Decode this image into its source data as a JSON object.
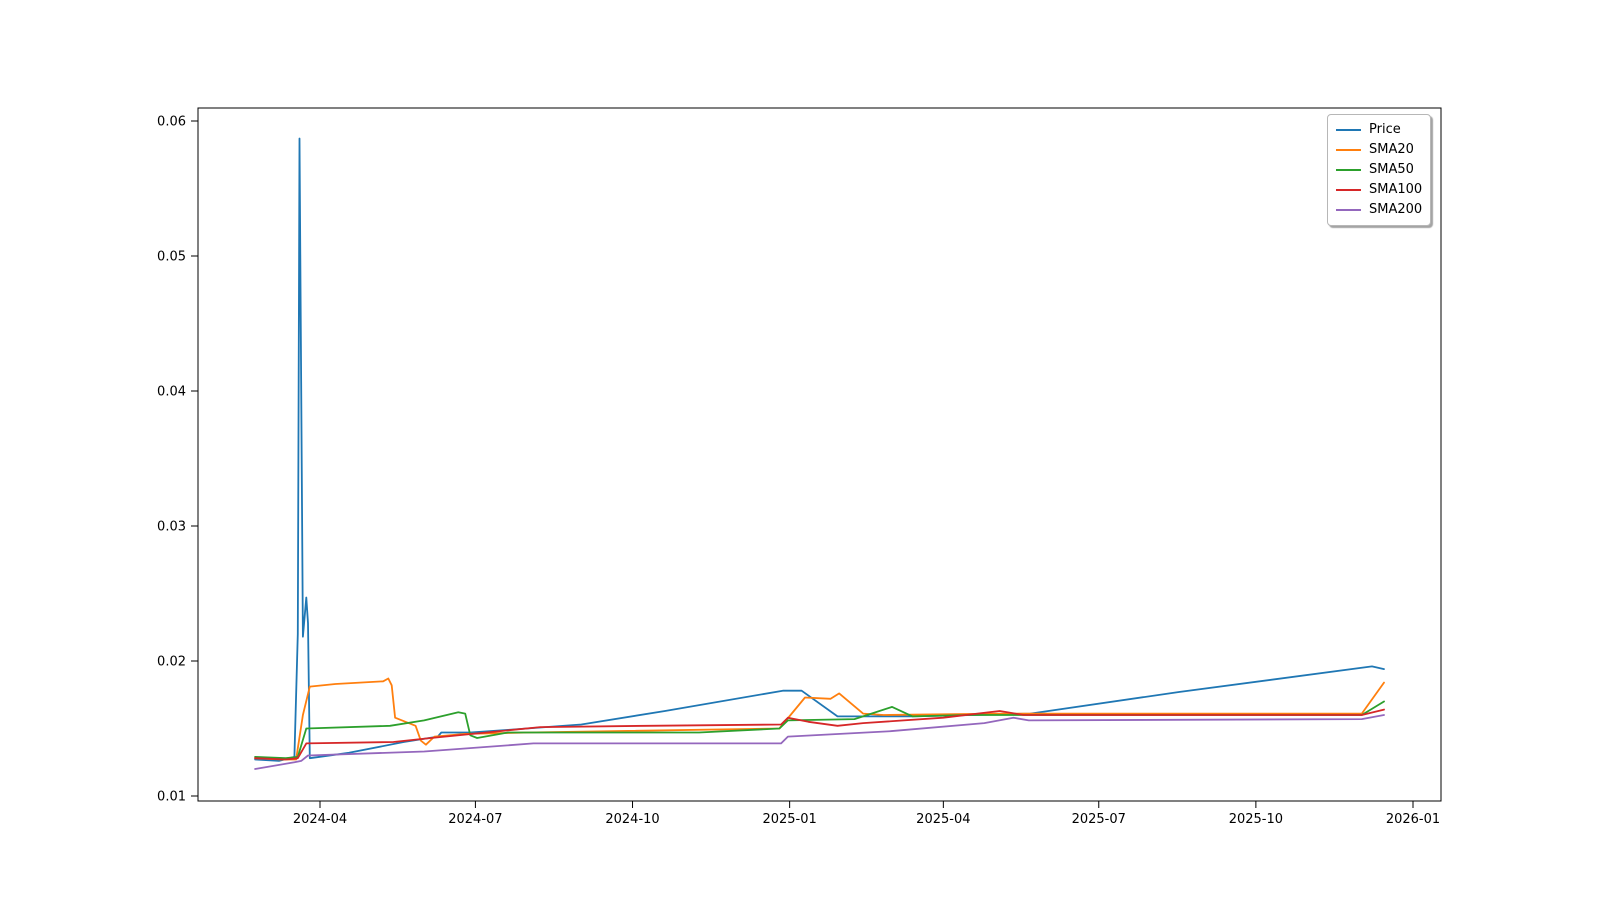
{
  "chart_data": {
    "type": "line",
    "title": "",
    "xlabel": "",
    "ylabel": "",
    "grid": false,
    "legend_position": "upper right",
    "background_color": "#ffffff",
    "axes_edge_color": "#000000",
    "x_ticks": [
      "2024-04",
      "2024-07",
      "2024-10",
      "2025-01",
      "2025-04",
      "2025-07",
      "2025-10",
      "2026-01"
    ],
    "y_ticks": [
      "0.01",
      "0.02",
      "0.03",
      "0.04",
      "0.05",
      "0.06"
    ],
    "ylim": [
      0.0098,
      0.0611
    ],
    "xlim": [
      "2024-01-21",
      "2026-01-17"
    ],
    "series": [
      {
        "name": "Price",
        "color": "#1f77b4",
        "points": [
          [
            "2024-02-23",
            0.0127
          ],
          [
            "2024-03-08",
            0.0126
          ],
          [
            "2024-03-17",
            0.0129
          ],
          [
            "2024-03-19",
            0.022
          ],
          [
            "2024-03-20",
            0.0587
          ],
          [
            "2024-03-22",
            0.0218
          ],
          [
            "2024-03-24",
            0.0247
          ],
          [
            "2024-03-25",
            0.0228
          ],
          [
            "2024-03-26",
            0.0128
          ],
          [
            "2024-04-18",
            0.0132
          ],
          [
            "2024-05-20",
            0.014
          ],
          [
            "2024-06-09",
            0.0144
          ],
          [
            "2024-06-11",
            0.0147
          ],
          [
            "2024-06-28",
            0.0147
          ],
          [
            "2024-07-20",
            0.0149
          ],
          [
            "2024-09-01",
            0.0153
          ],
          [
            "2024-10-20",
            0.0163
          ],
          [
            "2024-12-28",
            0.0178
          ],
          [
            "2025-01-08",
            0.0178
          ],
          [
            "2025-01-29",
            0.0159
          ],
          [
            "2025-03-14",
            0.0159
          ],
          [
            "2025-05-22",
            0.0161
          ],
          [
            "2025-08-17",
            0.0177
          ],
          [
            "2025-12-08",
            0.0196
          ],
          [
            "2025-12-15",
            0.0194
          ]
        ]
      },
      {
        "name": "SMA20",
        "color": "#ff7f0e",
        "points": [
          [
            "2024-02-23",
            0.0128
          ],
          [
            "2024-03-10",
            0.0127
          ],
          [
            "2024-03-18",
            0.0127
          ],
          [
            "2024-03-22",
            0.016
          ],
          [
            "2024-03-26",
            0.0181
          ],
          [
            "2024-04-10",
            0.0183
          ],
          [
            "2024-05-08",
            0.0185
          ],
          [
            "2024-05-11",
            0.0187
          ],
          [
            "2024-05-13",
            0.0182
          ],
          [
            "2024-05-15",
            0.0158
          ],
          [
            "2024-05-27",
            0.0152
          ],
          [
            "2024-05-30",
            0.0141
          ],
          [
            "2024-06-02",
            0.0138
          ],
          [
            "2024-06-07",
            0.0144
          ],
          [
            "2024-06-25",
            0.0146
          ],
          [
            "2024-08-01",
            0.0147
          ],
          [
            "2024-12-26",
            0.015
          ],
          [
            "2025-01-10",
            0.0173
          ],
          [
            "2025-01-25",
            0.0172
          ],
          [
            "2025-01-30",
            0.0176
          ],
          [
            "2025-02-13",
            0.0161
          ],
          [
            "2025-02-25",
            0.016
          ],
          [
            "2025-05-04",
            0.0161
          ],
          [
            "2025-12-02",
            0.0161
          ],
          [
            "2025-12-15",
            0.0184
          ]
        ]
      },
      {
        "name": "SMA50",
        "color": "#2ca02c",
        "points": [
          [
            "2024-02-23",
            0.0129
          ],
          [
            "2024-03-12",
            0.0128
          ],
          [
            "2024-03-19",
            0.0129
          ],
          [
            "2024-03-24",
            0.015
          ],
          [
            "2024-05-12",
            0.0152
          ],
          [
            "2024-06-01",
            0.0156
          ],
          [
            "2024-06-21",
            0.0162
          ],
          [
            "2024-06-25",
            0.0161
          ],
          [
            "2024-06-28",
            0.0145
          ],
          [
            "2024-07-02",
            0.0143
          ],
          [
            "2024-07-20",
            0.0147
          ],
          [
            "2024-11-09",
            0.0147
          ],
          [
            "2024-12-26",
            0.015
          ],
          [
            "2024-12-31",
            0.0156
          ],
          [
            "2025-02-08",
            0.0157
          ],
          [
            "2025-03-02",
            0.0166
          ],
          [
            "2025-03-14",
            0.0159
          ],
          [
            "2025-04-15",
            0.016
          ],
          [
            "2025-12-02",
            0.016
          ],
          [
            "2025-12-15",
            0.017
          ]
        ]
      },
      {
        "name": "SMA100",
        "color": "#d62728",
        "points": [
          [
            "2024-02-23",
            0.0128
          ],
          [
            "2024-03-12",
            0.0127
          ],
          [
            "2024-03-19",
            0.0128
          ],
          [
            "2024-03-24",
            0.0139
          ],
          [
            "2024-05-14",
            0.014
          ],
          [
            "2024-06-05",
            0.0143
          ],
          [
            "2024-08-08",
            0.0151
          ],
          [
            "2024-10-10",
            0.0152
          ],
          [
            "2024-12-27",
            0.0153
          ],
          [
            "2024-12-31",
            0.0158
          ],
          [
            "2025-01-12",
            0.0155
          ],
          [
            "2025-01-29",
            0.0152
          ],
          [
            "2025-02-13",
            0.0154
          ],
          [
            "2025-04-01",
            0.0158
          ],
          [
            "2025-05-04",
            0.0163
          ],
          [
            "2025-05-18",
            0.016
          ],
          [
            "2025-12-02",
            0.016
          ],
          [
            "2025-12-15",
            0.0164
          ]
        ]
      },
      {
        "name": "SMA200",
        "color": "#9467bd",
        "points": [
          [
            "2024-02-23",
            0.012
          ],
          [
            "2024-03-17",
            0.0125
          ],
          [
            "2024-03-21",
            0.0126
          ],
          [
            "2024-03-25",
            0.013
          ],
          [
            "2024-06-01",
            0.0133
          ],
          [
            "2024-08-04",
            0.0139
          ],
          [
            "2024-12-27",
            0.0139
          ],
          [
            "2024-12-31",
            0.0144
          ],
          [
            "2025-03-01",
            0.0148
          ],
          [
            "2025-04-25",
            0.0154
          ],
          [
            "2025-05-12",
            0.0158
          ],
          [
            "2025-05-21",
            0.0156
          ],
          [
            "2025-12-02",
            0.0157
          ],
          [
            "2025-12-15",
            0.016
          ]
        ]
      }
    ]
  }
}
